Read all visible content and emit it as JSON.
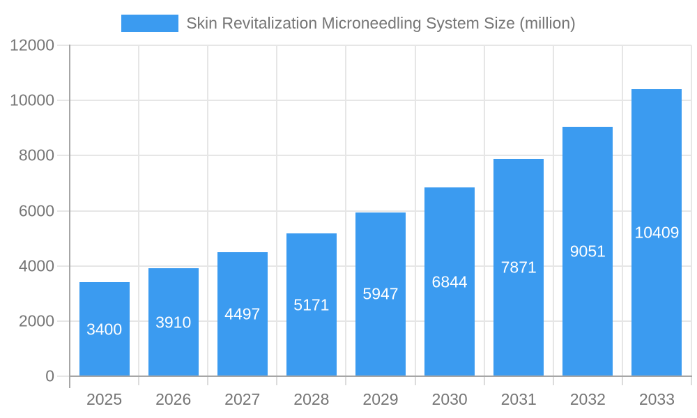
{
  "legend": {
    "label": "Skin Revitalization Microneedling System Size (million)"
  },
  "colors": {
    "bar": "#3B9BF0",
    "bar_label": "#FFFFFF",
    "axis_text": "#757575",
    "grid": "#E6E6E6",
    "axis_line": "#A6A6A6",
    "minor_tick": "#DCDCDC"
  },
  "chart_data": {
    "type": "bar",
    "title": "Skin Revitalization Microneedling System Size (million)",
    "series_name": "Skin Revitalization Microneedling System Size (million)",
    "categories": [
      "2025",
      "2026",
      "2027",
      "2028",
      "2029",
      "2030",
      "2031",
      "2032",
      "2033"
    ],
    "values": [
      3400,
      3910,
      4497,
      5171,
      5947,
      6844,
      7871,
      9051,
      10409
    ],
    "bar_labels": [
      "3400",
      "3910",
      "4497",
      "5171",
      "5947",
      "6844",
      "7871",
      "9051",
      "10409"
    ],
    "xlabel": "",
    "ylabel": "",
    "ylim": [
      0,
      12000
    ],
    "ytick_step": 2000,
    "ytick_labels": [
      "0",
      "2000",
      "4000",
      "6000",
      "8000",
      "10000",
      "12000"
    ],
    "grid": true,
    "legend_position": "top",
    "bar_label_position": "inside-middle"
  }
}
